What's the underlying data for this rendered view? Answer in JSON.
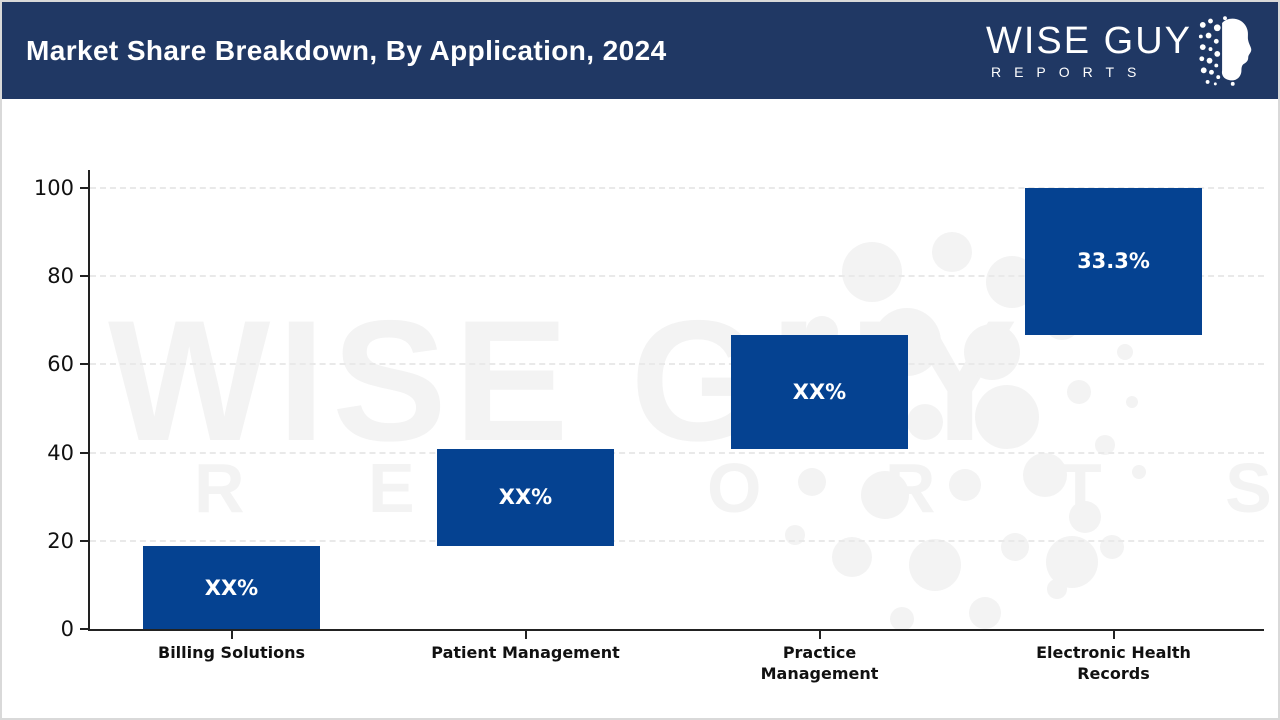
{
  "header": {
    "title": "Market Share Breakdown, By Application, 2024",
    "brand": {
      "wordmark": "WISE GUY",
      "subtext": "REPORTS"
    }
  },
  "watermark": {
    "line1": "WISE GUY",
    "line2": "R E P O R T S"
  },
  "colors": {
    "header_bg": "#203864",
    "bar": "#054291",
    "bar_label": "#ffffff",
    "grid": "#e9e9e9",
    "axis": "#222222",
    "watermark": "#f3f3f3",
    "frame": "#d9d9d9"
  },
  "chart_data": {
    "type": "bar",
    "subtype": "waterfall",
    "title": "Market Share Breakdown, By Application, 2024",
    "xlabel": "",
    "ylabel": "",
    "ylim": [
      0,
      100
    ],
    "yticks": [
      0,
      20,
      40,
      60,
      80,
      100
    ],
    "grid": "horizontal-dashed",
    "legend": null,
    "categories": [
      "Billing Solutions",
      "Patient Management",
      "Practice\nManagement",
      "Electronic Health\nRecords"
    ],
    "bars": [
      {
        "category": "Billing Solutions",
        "start": 0,
        "end": 18.8,
        "label": "XX%"
      },
      {
        "category": "Patient Management",
        "start": 18.8,
        "end": 40.9,
        "label": "XX%"
      },
      {
        "category": "Practice Management",
        "start": 40.9,
        "end": 66.7,
        "label": "XX%"
      },
      {
        "category": "Electronic Health Records",
        "start": 66.7,
        "end": 100,
        "label": "33.3%"
      }
    ]
  }
}
